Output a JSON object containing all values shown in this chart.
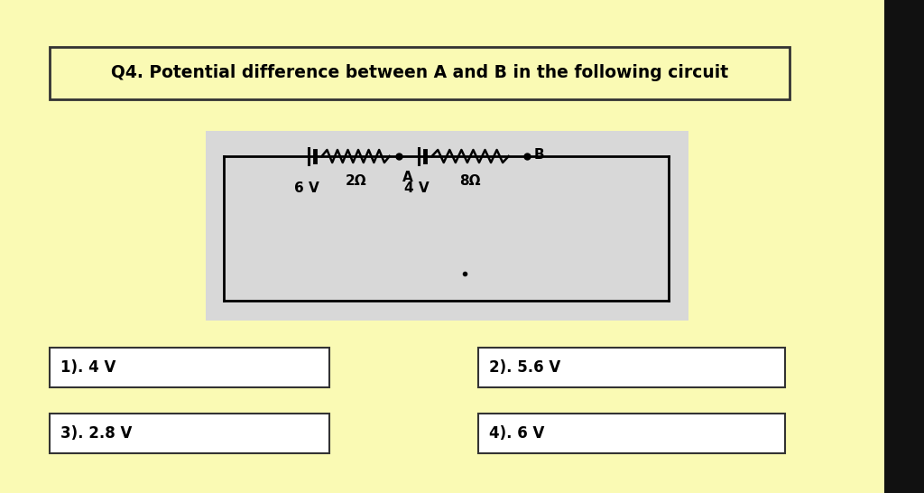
{
  "bg_color": "#FAFAB4",
  "title_box_text": "Q4. Potential difference between A and B in the following circuit",
  "title_box_bg": "#FAFAB4",
  "circuit_bg": "#D8D8D8",
  "options": [
    "1). 4 V",
    "2). 5.6 V",
    "3). 2.8 V",
    "4). 6 V"
  ],
  "circuit_labels": {
    "V1": "6 V",
    "R1": "2Ω",
    "A_label": "A",
    "V2": "4 V",
    "R2": "8Ω",
    "B_label": "B"
  },
  "figsize": [
    10.24,
    5.46
  ],
  "dpi": 100
}
